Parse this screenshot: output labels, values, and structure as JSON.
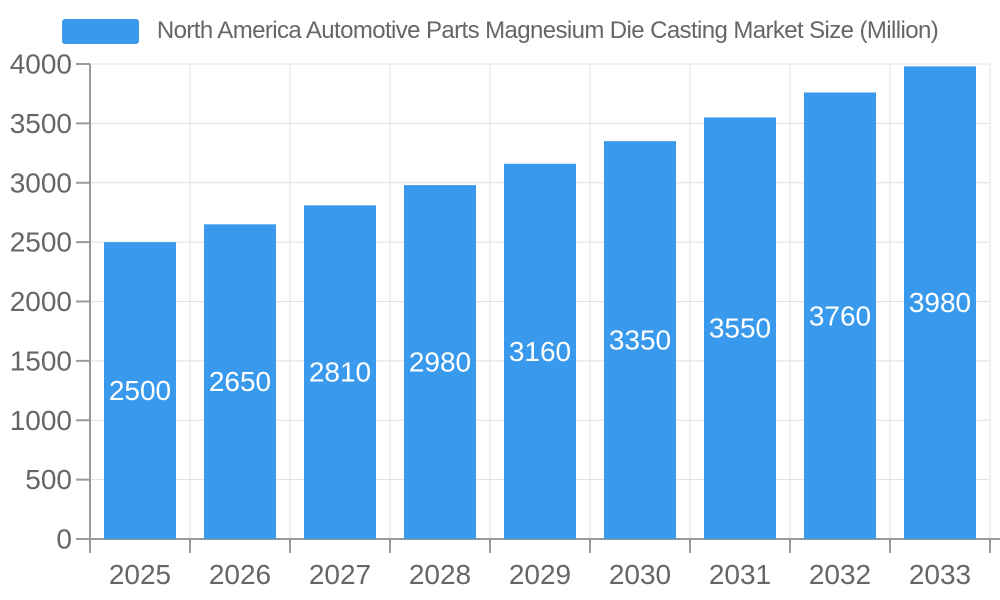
{
  "legend": {
    "items": [
      {
        "label": "North America Automotive Parts Magnesium Die Casting Market Size (Million)"
      }
    ]
  },
  "chart_data": {
    "type": "bar",
    "title": "North America Automotive Parts Magnesium Die Casting Market Size (Million)",
    "categories": [
      "2025",
      "2026",
      "2027",
      "2028",
      "2029",
      "2030",
      "2031",
      "2032",
      "2033"
    ],
    "values": [
      2500,
      2650,
      2810,
      2980,
      3160,
      3350,
      3550,
      3760,
      3980
    ],
    "bar_value_labels": [
      "2500",
      "2650",
      "2810",
      "2980",
      "3160",
      "3350",
      "3550",
      "3760",
      "3980"
    ],
    "xlabel": "",
    "ylabel": "",
    "ylim": [
      0,
      4000
    ],
    "ytick_step": 500,
    "ytick_labels": [
      "0",
      "500",
      "1000",
      "1500",
      "2000",
      "2500",
      "3000",
      "3500",
      "4000"
    ],
    "grid": true,
    "legend_position": "top",
    "value_labels_position": "inside-center",
    "colors": {
      "bar": "#399AED",
      "grid_line": "#E0E0E0",
      "axis_line": "#999999",
      "tick_line": "#999999",
      "axis_text": "#666666",
      "bar_label_text": "#FFFFFF",
      "background": "#FFFFFF"
    }
  }
}
